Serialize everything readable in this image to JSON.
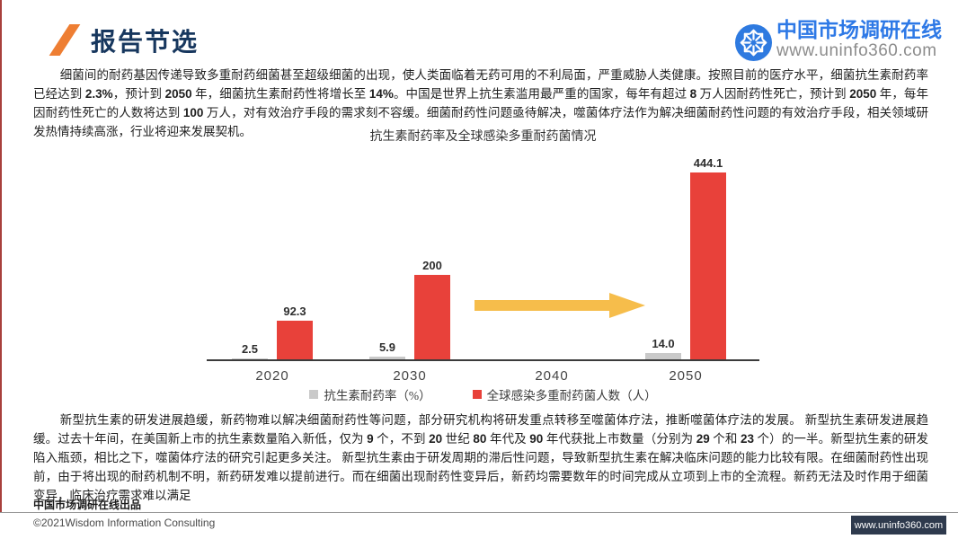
{
  "page": {
    "title": "报告节选"
  },
  "logo": {
    "icon": "radial-arrows-icon",
    "name": "中国市场调研在线",
    "url": "www.uninfo360.com"
  },
  "intro_paragraph": [
    {
      "t": "细菌间的耐药基因传递导致多重耐药细菌甚至超级细菌的出现，使人类面临着无药可用的不利局面，严重威胁人类健康。按照目前的医疗水平，细菌抗生素耐药率已经达到 "
    },
    {
      "t": "2.3%",
      "b": true
    },
    {
      "t": "，预计到 "
    },
    {
      "t": "2050",
      "b": true
    },
    {
      "t": " 年，细菌抗生素耐药性将增长至 "
    },
    {
      "t": "14%",
      "b": true
    },
    {
      "t": "。中国是世界上抗生素滥用最严重的国家，每年有超过 "
    },
    {
      "t": "8",
      "b": true
    },
    {
      "t": " 万人因耐药性死亡，预计到 "
    },
    {
      "t": "2050",
      "b": true
    },
    {
      "t": " 年，每年因耐药性死亡的人数将达到 "
    },
    {
      "t": "100",
      "b": true
    },
    {
      "t": " 万人，对有效治疗手段的需求刻不容缓。细菌耐药性问题亟待解决，噬菌体疗法作为解决细菌耐药性问题的有效治疗手段，相关领域研发热情持续高涨，行业将迎来发展契机。"
    }
  ],
  "chart_data": {
    "type": "bar",
    "title": "抗生素耐药率及全球感染多重耐药菌情况",
    "categories": [
      "2020",
      "2030",
      "2040",
      "2050"
    ],
    "series": [
      {
        "name": "抗生素耐药率（%）",
        "color": "#c9c9c9",
        "values": [
          2.5,
          5.9,
          null,
          14.0
        ],
        "labels": [
          "2.5",
          "5.9",
          "",
          "14.0"
        ]
      },
      {
        "name": "全球感染多重耐药菌人数（人）",
        "color": "#e8413a",
        "values": [
          92.3,
          200,
          null,
          444.1
        ],
        "labels": [
          "92.3",
          "200",
          "",
          "444.1"
        ]
      }
    ],
    "ylim": [
      0,
      470
    ],
    "grid": false,
    "legend_position": "bottom",
    "annotation": "yellow right arrow between 2030 and 2050 bars indicating projected growth"
  },
  "body_paragraph": [
    {
      "t": "新型抗生素的研发进展趋缓，新药物难以解决细菌耐药性等问题，部分研究机构将研发重点转移至噬菌体疗法，推断噬菌体疗法的发展。 新型抗生素研发进展趋缓。过去十年间，在美国新上市的抗生素数量陷入新低，仅为 "
    },
    {
      "t": "9",
      "b": true
    },
    {
      "t": " 个，不到 "
    },
    {
      "t": "20",
      "b": true
    },
    {
      "t": " 世纪 "
    },
    {
      "t": "80",
      "b": true
    },
    {
      "t": " 年代及 "
    },
    {
      "t": "90",
      "b": true
    },
    {
      "t": " 年代获批上市数量（分别为 "
    },
    {
      "t": "29",
      "b": true
    },
    {
      "t": " 个和 "
    },
    {
      "t": "23",
      "b": true
    },
    {
      "t": " 个）的一半。新型抗生素的研发陷入瓶颈，相比之下，噬菌体疗法的研究引起更多关注。 新型抗生素由于研发周期的滞后性问题，导致新型抗生素在解决临床问题的能力比较有限。在细菌耐药性出现前，由于将出现的耐药机制不明，新药研发难以提前进行。而在细菌出现耐药性变异后，新药均需要数年的时间完成从立项到上市的全流程。新药无法及时作用于细菌变异，临床治疗需求难以满足"
    }
  ],
  "footer": {
    "producer": "中国市场调研在线出品",
    "copyright": "©2021Wisdom Information Consulting",
    "badge_url": "www.uninfo360.com"
  },
  "colors": {
    "accent_orange": "#ee7e33",
    "title_navy": "#17375e",
    "logo_blue": "#2e79e6",
    "bar_red": "#e8413a",
    "bar_gray": "#c9c9c9",
    "arrow_yellow": "#f6bd4b",
    "badge_navy": "#2e3a4d",
    "left_line_red": "#a8403c"
  }
}
